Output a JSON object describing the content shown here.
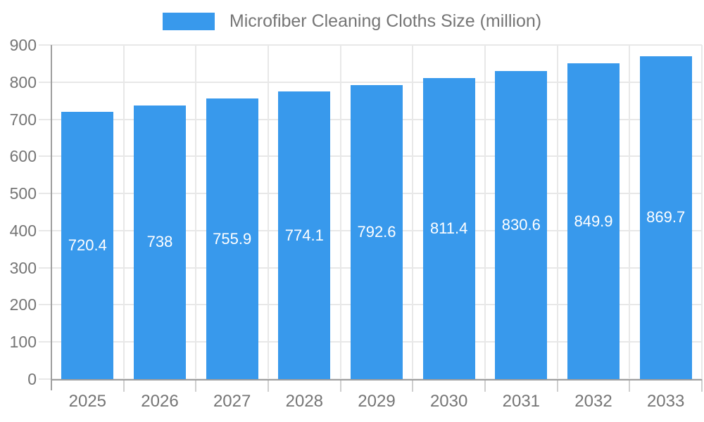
{
  "chart_data": {
    "type": "bar",
    "title": "Microfiber Cleaning Cloths Size (million)",
    "legend": {
      "label": "Microfiber Cleaning Cloths Size (million)",
      "position": "top-center"
    },
    "categories": [
      "2025",
      "2026",
      "2027",
      "2028",
      "2029",
      "2030",
      "2031",
      "2032",
      "2033"
    ],
    "series": [
      {
        "name": "Microfiber Cleaning Cloths Size (million)",
        "values": [
          720.4,
          738,
          755.9,
          774.1,
          792.6,
          811.4,
          830.6,
          849.9,
          869.7
        ],
        "value_labels": [
          "720.4",
          "738",
          "755.9",
          "774.1",
          "792.6",
          "811.4",
          "830.6",
          "849.9",
          "869.7"
        ]
      }
    ],
    "xlabel": "",
    "ylabel": "",
    "ylim": [
      0,
      900
    ],
    "y_tick_step": 100,
    "y_tick_labels": [
      "0",
      "100",
      "200",
      "300",
      "400",
      "500",
      "600",
      "700",
      "800",
      "900"
    ],
    "grid": true,
    "value_label_position": "inside-center",
    "colors": {
      "bar": "#3899EC",
      "value_label": "#FFFFFF",
      "axis_text": "#757575",
      "axis_line": "#9E9E9E",
      "gridline": "#E8E8E8",
      "tick": "#CFCFCF",
      "background": "#FFFFFF"
    }
  }
}
